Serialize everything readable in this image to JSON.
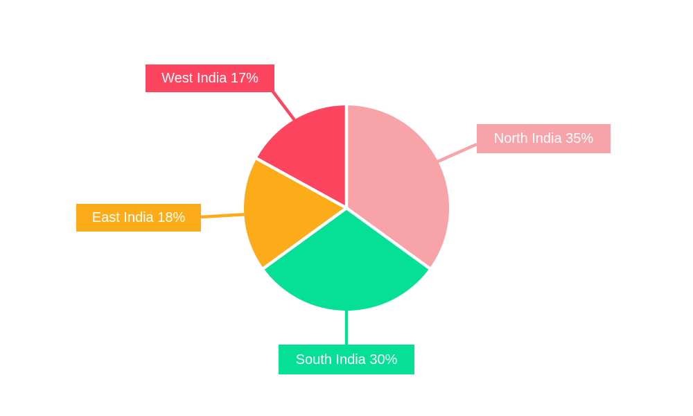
{
  "chart_data": {
    "type": "pie",
    "title": "",
    "categories": [
      "North India",
      "South India",
      "East India",
      "West India"
    ],
    "values": [
      35,
      30,
      18,
      17
    ],
    "unit": "%",
    "colors": [
      "#F8A3A8",
      "#06DF96",
      "#FCAC19",
      "#FD4560"
    ],
    "callouts": [
      {
        "text": "North India 35%",
        "color": "#F8A3A8"
      },
      {
        "text": "South India 30%",
        "color": "#06DF96"
      },
      {
        "text": "East India 18%",
        "color": "#FCAC19"
      },
      {
        "text": "West India 17%",
        "color": "#FD4560"
      }
    ],
    "start_angle_deg": 0,
    "direction": "clockwise",
    "legend_position": "none",
    "background": "#ffffff",
    "separator_color": "#ffffff"
  }
}
